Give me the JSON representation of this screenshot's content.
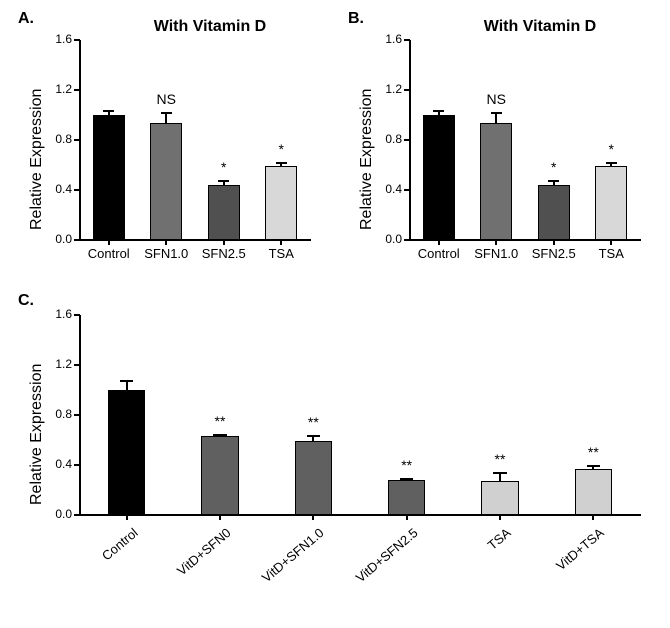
{
  "figure": {
    "background_color": "#ffffff",
    "axis_color": "#000000",
    "panel_label_fontsize": 16,
    "title_fontsize": 16,
    "axis_label_fontsize": 16,
    "tick_fontsize": 12,
    "cat_fontsize": 13,
    "annot_fontsize": 14
  },
  "panelA": {
    "label": "A.",
    "title": "With Vitamin D",
    "type": "bar",
    "ylabel": "Relative Expression",
    "ylim": [
      0,
      1.6
    ],
    "ytick_step": 0.4,
    "yticks": [
      "0.0",
      "0.4",
      "0.8",
      "1.2",
      "1.6"
    ],
    "bar_width": 0.55,
    "bar_border": "#000000",
    "categories": [
      "Control",
      "SFN1.0",
      "SFN2.5",
      "TSA"
    ],
    "values": [
      1.0,
      0.94,
      0.44,
      0.59
    ],
    "errors": [
      0.03,
      0.08,
      0.03,
      0.03
    ],
    "bar_colors": [
      "#000000",
      "#707070",
      "#505050",
      "#d8d8d8"
    ],
    "annotations": [
      "",
      "NS",
      "*",
      "*"
    ]
  },
  "panelB": {
    "label": "B.",
    "title": "With Vitamin D",
    "type": "bar",
    "ylabel": "Relative Expression",
    "ylim": [
      0,
      1.6
    ],
    "ytick_step": 0.4,
    "yticks": [
      "0.0",
      "0.4",
      "0.8",
      "1.2",
      "1.6"
    ],
    "bar_width": 0.55,
    "bar_border": "#000000",
    "categories": [
      "Control",
      "SFN1.0",
      "SFN2.5",
      "TSA"
    ],
    "values": [
      1.0,
      0.94,
      0.44,
      0.59
    ],
    "errors": [
      0.03,
      0.08,
      0.03,
      0.03
    ],
    "bar_colors": [
      "#000000",
      "#707070",
      "#505050",
      "#d8d8d8"
    ],
    "annotations": [
      "",
      "NS",
      "*",
      "*"
    ]
  },
  "panelC": {
    "label": "C.",
    "type": "bar",
    "ylabel": "Relative Expression",
    "ylim": [
      0,
      1.6
    ],
    "ytick_step": 0.4,
    "yticks": [
      "0.0",
      "0.4",
      "0.8",
      "1.2",
      "1.6"
    ],
    "bar_width": 0.4,
    "bar_border": "#000000",
    "categories": [
      "Control",
      "VitD+SFN0",
      "VitD+SFN1.0",
      "VitD+SFN2.5",
      "TSA",
      "VitD+TSA"
    ],
    "values": [
      1.0,
      0.63,
      0.59,
      0.28,
      0.27,
      0.37
    ],
    "errors": [
      0.07,
      0.01,
      0.04,
      0.01,
      0.07,
      0.02
    ],
    "bar_colors": [
      "#000000",
      "#606060",
      "#606060",
      "#606060",
      "#d0d0d0",
      "#d0d0d0"
    ],
    "annotations": [
      "",
      "**",
      "**",
      "**",
      "**",
      "**"
    ]
  }
}
